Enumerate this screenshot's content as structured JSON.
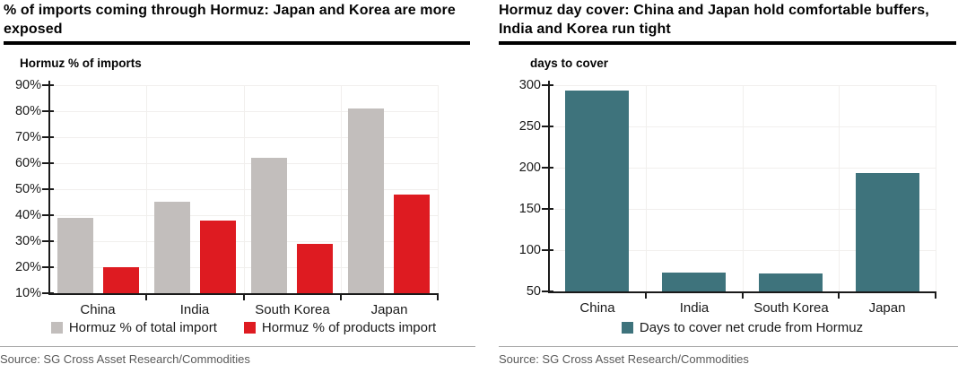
{
  "panels": [
    {
      "title": "% of imports coming through Hormuz: Japan and Korea are more exposed",
      "axis_title": "Hormuz % of imports",
      "source": "Source: SG Cross Asset Research/Commodities"
    },
    {
      "title": "Hormuz day cover: China and Japan hold comfortable buffers, India and Korea run tight",
      "axis_title": "days to cover",
      "source": "Source: SG Cross Asset Research/Commodities"
    }
  ],
  "chart_data": [
    {
      "type": "bar",
      "title": "% of imports coming through Hormuz: Japan and Korea are more exposed",
      "ylabel": "Hormuz % of imports",
      "categories": [
        "China",
        "India",
        "South Korea",
        "Japan"
      ],
      "series": [
        {
          "name": "Hormuz % of total import",
          "color": "#c2bebc",
          "values": [
            39,
            45,
            62,
            81
          ]
        },
        {
          "name": "Hormuz % of products import",
          "color": "#de1b21",
          "values": [
            20,
            38,
            29,
            48
          ]
        }
      ],
      "ylim": [
        10,
        90
      ],
      "ytick_step": 10,
      "ytick_suffix": "%",
      "grid": true,
      "legend_position": "bottom"
    },
    {
      "type": "bar",
      "title": "Hormuz day cover: China and Japan hold comfortable buffers, India and Korea run tight",
      "ylabel": "days to cover",
      "categories": [
        "China",
        "India",
        "South Korea",
        "Japan"
      ],
      "series": [
        {
          "name": "Days to cover net crude from Hormuz",
          "color": "#3e737c",
          "values": [
            293,
            73,
            72,
            193
          ]
        }
      ],
      "ylim": [
        50,
        300
      ],
      "ytick_step": 50,
      "ytick_suffix": "",
      "grid": true,
      "legend_position": "bottom"
    }
  ]
}
